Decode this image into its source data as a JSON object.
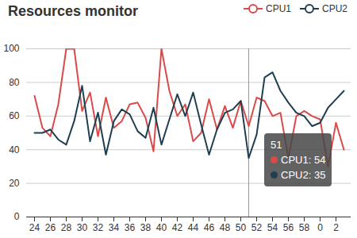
{
  "chart_data": {
    "type": "line",
    "title": "Resources monitor",
    "categories": [
      24,
      null,
      26,
      null,
      28,
      null,
      30,
      null,
      32,
      null,
      34,
      null,
      36,
      null,
      38,
      null,
      40,
      null,
      42,
      null,
      44,
      null,
      46,
      null,
      48,
      null,
      50,
      null,
      52,
      null,
      54,
      null,
      56,
      null,
      58,
      null,
      0,
      null,
      2,
      null
    ],
    "series": [
      {
        "name": "CPU1",
        "color": "#d94a4a",
        "values": [
          72,
          53,
          48,
          67,
          100,
          100,
          63,
          74,
          48,
          71,
          53,
          57,
          67,
          68,
          59,
          39,
          100,
          75,
          60,
          67,
          45,
          50,
          70,
          52,
          66,
          53,
          69,
          54,
          71,
          69,
          60,
          62,
          35,
          60,
          63,
          60,
          58,
          30,
          56,
          40
        ]
      },
      {
        "name": "CPU2",
        "color": "#1f3f50",
        "values": [
          50,
          50,
          52,
          46,
          43,
          57,
          78,
          45,
          62,
          37,
          57,
          64,
          61,
          51,
          47,
          65,
          43,
          58,
          73,
          60,
          74,
          55,
          37,
          52,
          62,
          64,
          69,
          35,
          49,
          83,
          86,
          75,
          68,
          62,
          60,
          54,
          56,
          65,
          70,
          75
        ]
      }
    ],
    "ylim": [
      0,
      100
    ],
    "yticks": [
      0,
      20,
      40,
      60,
      80,
      100
    ],
    "grid": true,
    "legend": "top-right",
    "tooltip": {
      "title": "51",
      "lines": [
        "CPU1: 54",
        "CPU2: 35"
      ],
      "values": [
        54,
        35
      ]
    }
  }
}
